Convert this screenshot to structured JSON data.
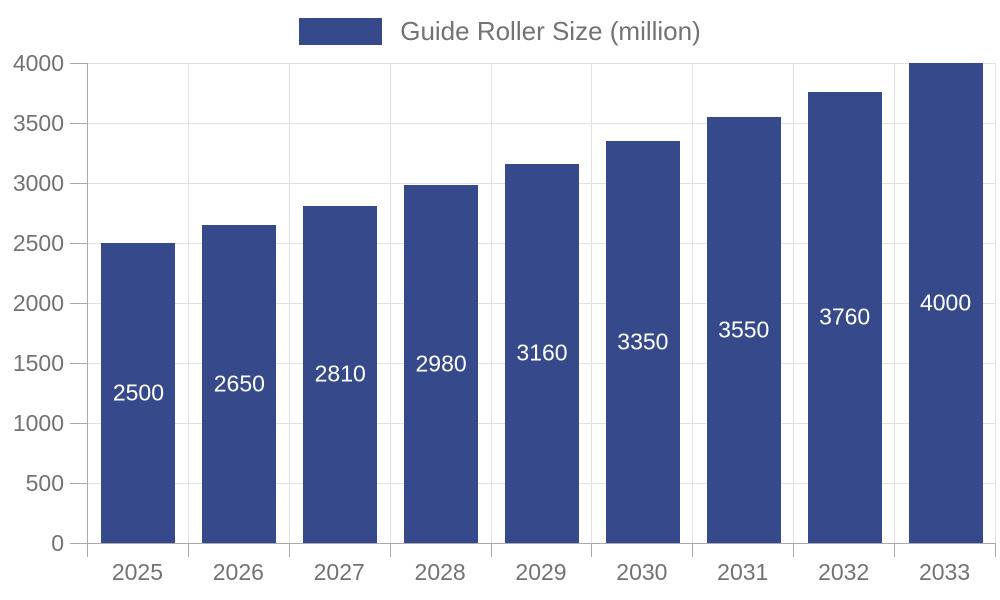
{
  "colors": {
    "bar": "#36498B",
    "grid": "#E2E2E2",
    "axis": "#AAAAAA",
    "tick_label": "#737373",
    "legend_text": "#737373",
    "value_label": "#FFFFFF",
    "background": "#FFFFFF"
  },
  "chart_data": {
    "type": "bar",
    "title": "",
    "legend": [
      "Guide Roller Size (million)"
    ],
    "legend_position": "top-center",
    "categories": [
      "2025",
      "2026",
      "2027",
      "2028",
      "2029",
      "2030",
      "2031",
      "2032",
      "2033"
    ],
    "values": [
      2500,
      2650,
      2810,
      2980,
      3160,
      3350,
      3550,
      3760,
      4000
    ],
    "value_label_position": "inside-center",
    "xlabel": "",
    "ylabel": "",
    "ylim": [
      0,
      4000
    ],
    "yticks": [
      0,
      500,
      1000,
      1500,
      2000,
      2500,
      3000,
      3500,
      4000
    ],
    "grid": true,
    "grid_horizontal": true,
    "grid_vertical": true
  }
}
